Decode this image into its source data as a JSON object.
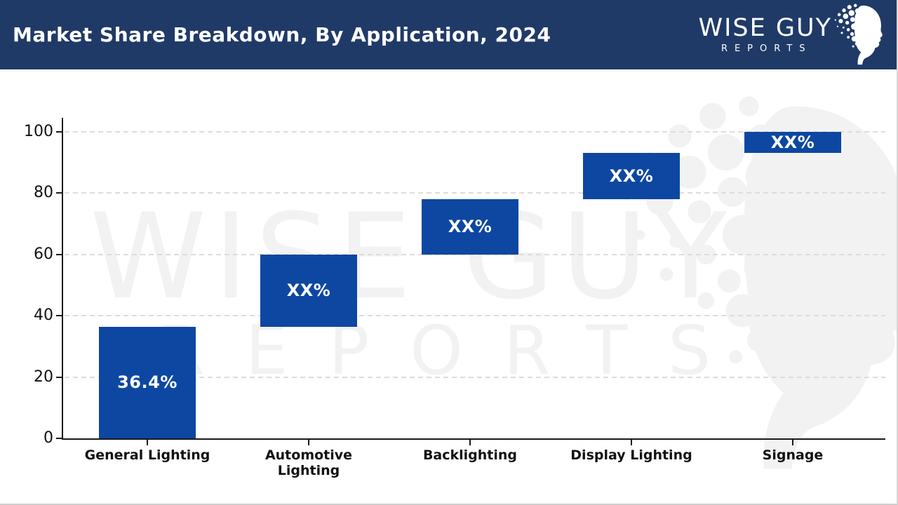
{
  "header": {
    "title": "Market Share Breakdown, By Application, 2024",
    "logo_line1": "WISE GUY",
    "logo_line2": "REPORTS"
  },
  "watermark": {
    "line1": "WISE GUY",
    "line2": "REPORTS"
  },
  "colors": {
    "header_bg": "#203a68",
    "bar_blue": "#0d47a1",
    "grid_gray": "#dcdcdc",
    "axis_black": "#1a1a1a",
    "watermark_gray": "#f2f2f3",
    "label_white": "#ffffff"
  },
  "chart_data": {
    "type": "bar",
    "subtype": "waterfall",
    "title": "Market Share Breakdown, By Application, 2024",
    "categories": [
      "General Lighting",
      "Automotive Lighting",
      "Backlighting",
      "Display Lighting",
      "Signage"
    ],
    "segments": [
      {
        "category": "General Lighting",
        "label": "36.4%",
        "start": 0,
        "end": 36.4
      },
      {
        "category": "Automotive Lighting",
        "label": "XX%",
        "start": 36.4,
        "end": 60
      },
      {
        "category": "Backlighting",
        "label": "XX%",
        "start": 60,
        "end": 78
      },
      {
        "category": "Display Lighting",
        "label": "XX%",
        "start": 78,
        "end": 93
      },
      {
        "category": "Signage",
        "label": "XX%",
        "start": 93,
        "end": 100
      }
    ],
    "yticks": [
      0,
      20,
      40,
      60,
      80,
      100
    ],
    "ylim": [
      0,
      104
    ],
    "xlabel": "",
    "ylabel": "",
    "grid": "horizontal-dashed",
    "legend": "none",
    "bar_color": "#0d47a1",
    "value_label_color": "#ffffff"
  }
}
